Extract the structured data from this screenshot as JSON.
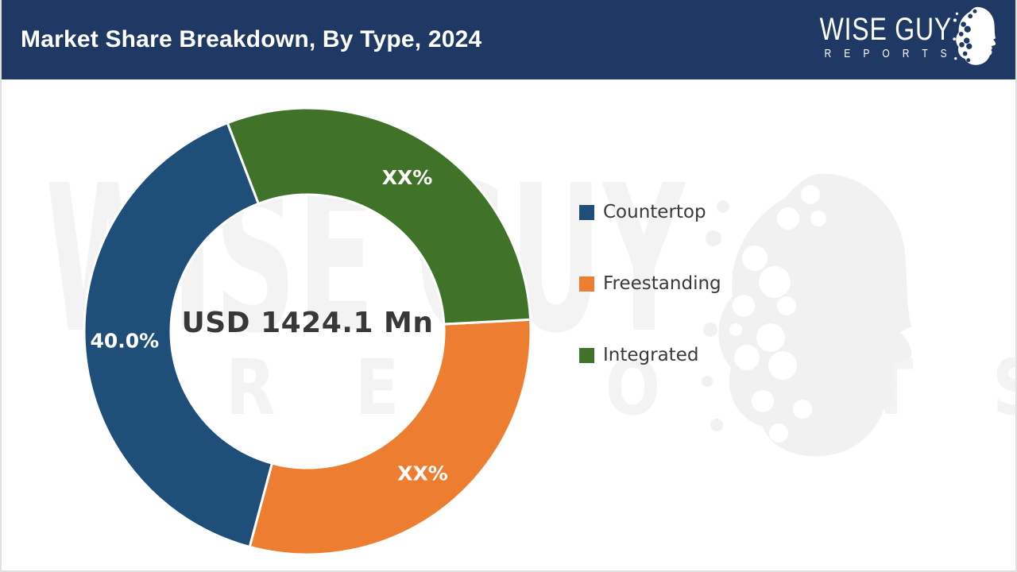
{
  "header": {
    "title": "Market Share Breakdown, By Type, 2024",
    "bg_color": "#1f3864",
    "logo": {
      "line1": "WISE GUY",
      "line2": "R E P O R T S"
    }
  },
  "watermark": {
    "line1": "WISE GUY",
    "line2": "R E P O R T S"
  },
  "chart_data": {
    "type": "pie",
    "subtype": "donut",
    "title": "Market Share Breakdown, By Type, 2024",
    "center_label": "USD 1424.1 Mn",
    "start_angle_deg": 111,
    "direction": "ccw",
    "legend_position": "right",
    "categories": [
      "Countertop",
      "Freestanding",
      "Integrated"
    ],
    "values": [
      40.0,
      30.0,
      30.0
    ],
    "segments": [
      {
        "name": "Countertop",
        "value": 40.0,
        "label": "40.0%",
        "color": "#1F4E79"
      },
      {
        "name": "Freestanding",
        "value": 30.0,
        "label": "XX%",
        "color": "#ED7D31"
      },
      {
        "name": "Integrated",
        "value": 30.0,
        "label": "XX%",
        "color": "#41722A"
      }
    ]
  }
}
